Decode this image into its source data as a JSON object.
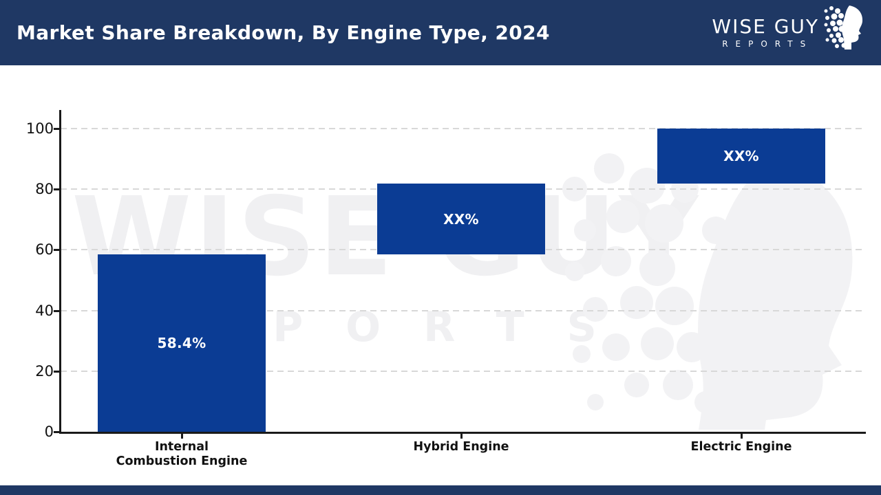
{
  "header": {
    "title": "Market Share Breakdown, By Engine Type, 2024",
    "logo": {
      "line1": "WISE GUY",
      "line2": "REPORTS"
    }
  },
  "watermark": {
    "line1": "WISE GUY",
    "line2": "REPORTS"
  },
  "colors": {
    "header_bg": "#1f3864",
    "footer_bg": "#1f3864",
    "bar": "#0b3c94",
    "bar_label": "#ffffff",
    "grid": "#d8d8d8",
    "axis": "#1a1a1a",
    "tick_text": "#111111",
    "watermark": "#f0f0f2",
    "title_text": "#ffffff"
  },
  "chart_data": {
    "type": "bar",
    "variant": "waterfall-stacked-percent",
    "title": "Market Share Breakdown, By Engine Type, 2024",
    "categories": [
      "Internal Combustion Engine",
      "Hybrid Engine",
      "Electric Engine"
    ],
    "bars": [
      {
        "category": "Internal Combustion Engine",
        "category_lines": [
          "Internal",
          "Combustion Engine"
        ],
        "label": "58.4%",
        "start": 0,
        "end": 58.4
      },
      {
        "category": "Hybrid Engine",
        "category_lines": [
          "Hybrid Engine"
        ],
        "label": "XX%",
        "start": 58.4,
        "end": 81.8
      },
      {
        "category": "Electric Engine",
        "category_lines": [
          "Electric Engine"
        ],
        "label": "XX%",
        "start": 81.8,
        "end": 100
      }
    ],
    "yticks": [
      0,
      20,
      40,
      60,
      80,
      100
    ],
    "ylim": [
      0,
      105
    ],
    "xlabel": "",
    "ylabel": "",
    "grid": "dashed-horizontal",
    "legend": "none"
  }
}
